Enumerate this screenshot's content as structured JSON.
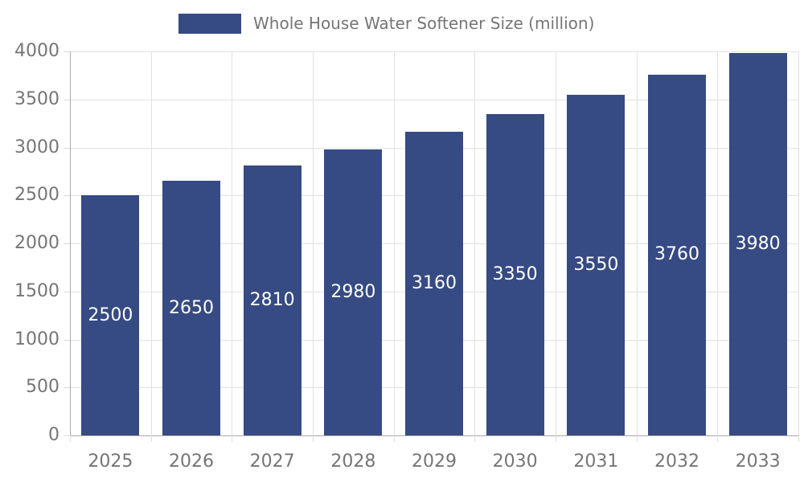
{
  "legend": {
    "label": "Whole House Water Softener Size (million)"
  },
  "colors": {
    "bar": "#364A83",
    "grid": "#e2e2e2",
    "axis_line": "#aaaaaa",
    "tick": "#dddddd",
    "axis_text": "#757575",
    "bar_label_text": "#ffffff",
    "background": "#ffffff"
  },
  "chart_data": {
    "type": "bar",
    "title": "",
    "categories": [
      "2025",
      "2026",
      "2027",
      "2028",
      "2029",
      "2030",
      "2031",
      "2032",
      "2033"
    ],
    "series": [
      {
        "name": "Whole House Water Softener Size (million)",
        "values": [
          2500,
          2650,
          2810,
          2980,
          3160,
          3350,
          3550,
          3760,
          3980
        ]
      }
    ],
    "xlabel": "",
    "ylabel": "",
    "ylim": [
      0,
      4000
    ],
    "yticks": [
      0,
      500,
      1000,
      1500,
      2000,
      2500,
      3000,
      3500,
      4000
    ],
    "grid": true,
    "legend_position": "top",
    "bar_value_labels": "inside-center"
  }
}
